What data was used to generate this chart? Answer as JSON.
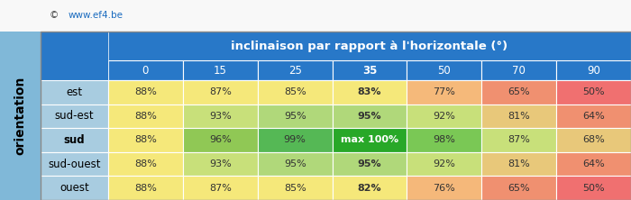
{
  "title": "inclinaison par rapport à l'horizontale (°)",
  "col_headers": [
    "0",
    "15",
    "25",
    "35",
    "50",
    "70",
    "90"
  ],
  "row_headers": [
    "est",
    "sud-est",
    "sud",
    "sud-ouest",
    "ouest"
  ],
  "orientation_label": "orientation",
  "copyright_text": "© ",
  "website_text": "www.ef4.be",
  "values": [
    [
      "88%",
      "87%",
      "85%",
      "83%",
      "77%",
      "65%",
      "50%"
    ],
    [
      "88%",
      "93%",
      "95%",
      "95%",
      "92%",
      "81%",
      "64%"
    ],
    [
      "88%",
      "96%",
      "99%",
      "max 100%",
      "98%",
      "87%",
      "68%"
    ],
    [
      "88%",
      "93%",
      "95%",
      "95%",
      "92%",
      "81%",
      "64%"
    ],
    [
      "88%",
      "87%",
      "85%",
      "82%",
      "76%",
      "65%",
      "50%"
    ]
  ],
  "cell_colors": [
    [
      "#f5e87a",
      "#f5e87a",
      "#f5e87a",
      "#f5e87a",
      "#f5b97a",
      "#f09070",
      "#f07070"
    ],
    [
      "#f5e87a",
      "#c8e07a",
      "#b0d87a",
      "#b0d87a",
      "#c8e07a",
      "#e8c87a",
      "#f09070"
    ],
    [
      "#f5e87a",
      "#90c855",
      "#55b855",
      "#28a828",
      "#7ac855",
      "#c8e07a",
      "#e8c87a"
    ],
    [
      "#f5e87a",
      "#c8e07a",
      "#b0d87a",
      "#b0d87a",
      "#c8e07a",
      "#e8c87a",
      "#f09070"
    ],
    [
      "#f5e87a",
      "#f5e87a",
      "#f5e87a",
      "#f5e87a",
      "#f5b87a",
      "#f09070",
      "#f07070"
    ]
  ],
  "header_bg": "#2878c8",
  "header_text_color": "#ffffff",
  "subheader_bg": "#2878c8",
  "subheader_text_color": "#ffffff",
  "orientation_bg": "#80b8d8",
  "row_label_bg": "#a8cce0",
  "bold_cols": [
    "35"
  ],
  "max_cell_color": "#28a828",
  "max_cell_text": "max 100%",
  "max_cell_text_color": "#ffffff",
  "fig_bg": "#ffffff",
  "border_color": "#ffffff",
  "row_alt_colors": [
    "#f8f8f8",
    "#f0f0f0"
  ]
}
